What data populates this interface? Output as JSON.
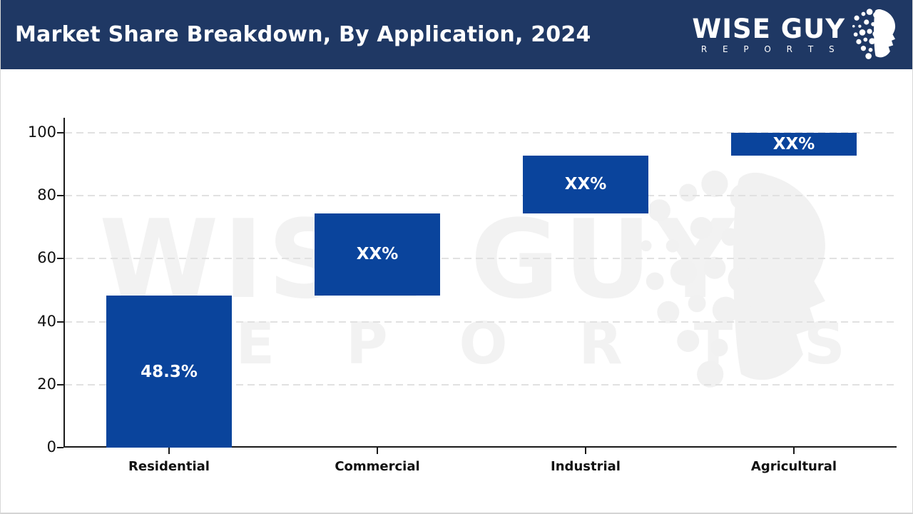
{
  "header": {
    "title": "Market Share Breakdown, By Application, 2024",
    "logo": {
      "line1": "WISE GUY",
      "line2": "R E P O R T S"
    }
  },
  "watermark": {
    "line1": "WISE GUY",
    "line2": "R E P O R T S"
  },
  "colors": {
    "header_bg": "#1F3864",
    "bar": "#0A449C",
    "bar_label_text": "#FFFFFF",
    "grid": "#E1E1E1",
    "axis": "#1A1A1A",
    "watermark": "#F2F2F2"
  },
  "chart_data": {
    "type": "bar",
    "subtype": "waterfall",
    "title": "Market Share Breakdown, By Application, 2024",
    "categories": [
      "Residential",
      "Commercial",
      "Industrial",
      "Agricultural"
    ],
    "series": [
      {
        "name": "Market Share (%)",
        "base": [
          0,
          48.3,
          74.5,
          92.8
        ],
        "top": [
          48.3,
          74.5,
          92.8,
          100
        ],
        "segments": [
          48.3,
          26.2,
          18.3,
          7.2
        ]
      }
    ],
    "bar_labels": [
      "48.3%",
      "XX%",
      "XX%",
      "XX%"
    ],
    "xlabel": "",
    "ylabel": "",
    "yticks": [
      0,
      20,
      40,
      60,
      80,
      100
    ],
    "ylim": [
      0,
      104.8
    ],
    "grid": "horizontal-dashed",
    "legend": "none"
  }
}
